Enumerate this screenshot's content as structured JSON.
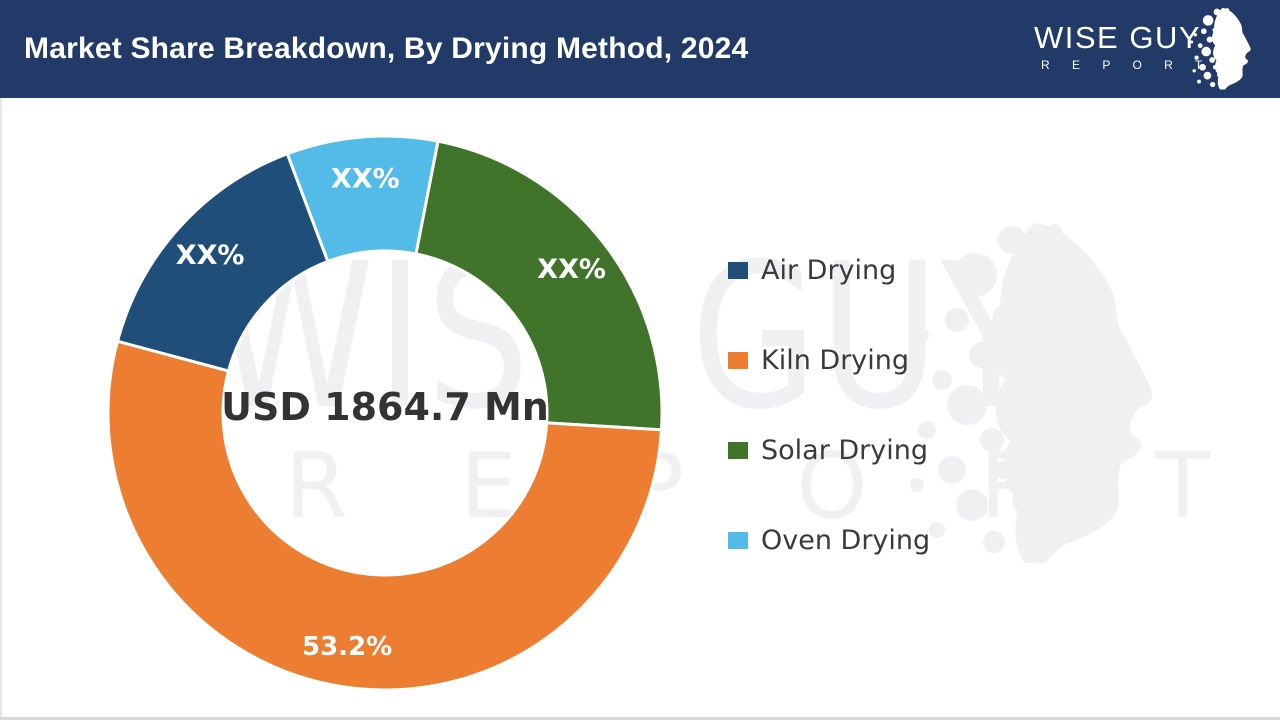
{
  "header": {
    "title": "Market Share Breakdown, By Drying Method, 2024",
    "logo": {
      "name": "WISE GUY",
      "sub": "R E P O R T S"
    }
  },
  "watermark": {
    "title": "WISE GUY",
    "subtitle": "R E P O R T S"
  },
  "colors": {
    "header_bg": "#213a67",
    "air_drying": "#1f4e79",
    "kiln_drying": "#ed7d31",
    "solar_drying": "#41742b",
    "oven_drying": "#52bbe8",
    "center_text": "#333333",
    "watermark": "#f0f0f3"
  },
  "chart_data": {
    "type": "pie",
    "donut": true,
    "title": "Market Share Breakdown, By Drying Method, 2024",
    "center_text": "USD 1864.7 Mn",
    "start_angle_deg": 285,
    "outer_radius": 277,
    "inner_radius": 162,
    "label_radius": 236,
    "segments": [
      {
        "name": "Air Drying",
        "display_label": "XX%",
        "value_pct_est": 15.1,
        "color": "#1f4e79"
      },
      {
        "name": "Oven Drying",
        "display_label": "XX%",
        "value_pct_est": 8.8,
        "color": "#52bbe8"
      },
      {
        "name": "Solar Drying",
        "display_label": "XX%",
        "value_pct_est": 22.9,
        "color": "#41742b"
      },
      {
        "name": "Kiln Drying",
        "display_label": "53.2%",
        "value_pct_est": 53.2,
        "color": "#ed7d31"
      }
    ]
  },
  "legend": {
    "items": [
      {
        "label": "Air Drying",
        "color": "#1f4e79"
      },
      {
        "label": "Kiln Drying",
        "color": "#ed7d31"
      },
      {
        "label": "Solar Drying",
        "color": "#41742b"
      },
      {
        "label": "Oven Drying",
        "color": "#52bbe8"
      }
    ]
  }
}
